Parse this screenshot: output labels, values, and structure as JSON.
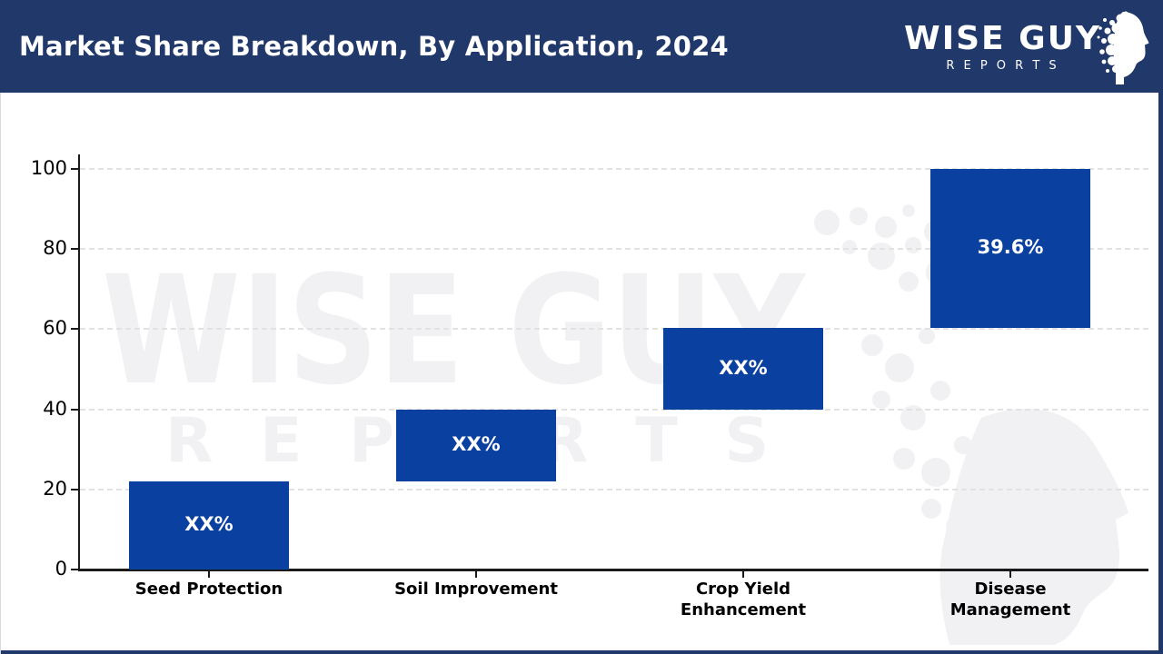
{
  "header": {
    "title": "Market Share Breakdown, By Application, 2024",
    "brand": {
      "name_line": "WISE GUY",
      "reports_line": "R E P O R T S"
    }
  },
  "watermark": {
    "name_line": "WISE GUY",
    "reports_line": "R E P O R T S"
  },
  "colors": {
    "header_bg": "#21386b",
    "bar": "#0a41a1",
    "bar_label_text": "#ffffff",
    "grid_line": "#e2e2e2",
    "axis": "#1a1a1a",
    "watermark": "#f1f1f4"
  },
  "chart_data": {
    "type": "bar",
    "subtype": "waterfall",
    "title": "Market Share Breakdown, By Application, 2024",
    "xlabel": "",
    "ylabel": "",
    "ylim": [
      0,
      100
    ],
    "yticks": [
      0,
      20,
      40,
      60,
      80,
      100
    ],
    "grid": "horizontal dashed",
    "legend": "none",
    "categories": [
      "Seed Protection",
      "Soil Improvement",
      "Crop Yield Enhancement",
      "Disease Management"
    ],
    "segments": [
      {
        "category": "Seed Protection",
        "start": 0,
        "end": 22,
        "label": "XX%"
      },
      {
        "category": "Soil Improvement",
        "start": 22,
        "end": 40,
        "label": "XX%"
      },
      {
        "category": "Crop Yield Enhancement",
        "start": 40,
        "end": 60.4,
        "label": "XX%"
      },
      {
        "category": "Disease Management",
        "start": 60.4,
        "end": 100,
        "label": "39.6%"
      }
    ]
  }
}
